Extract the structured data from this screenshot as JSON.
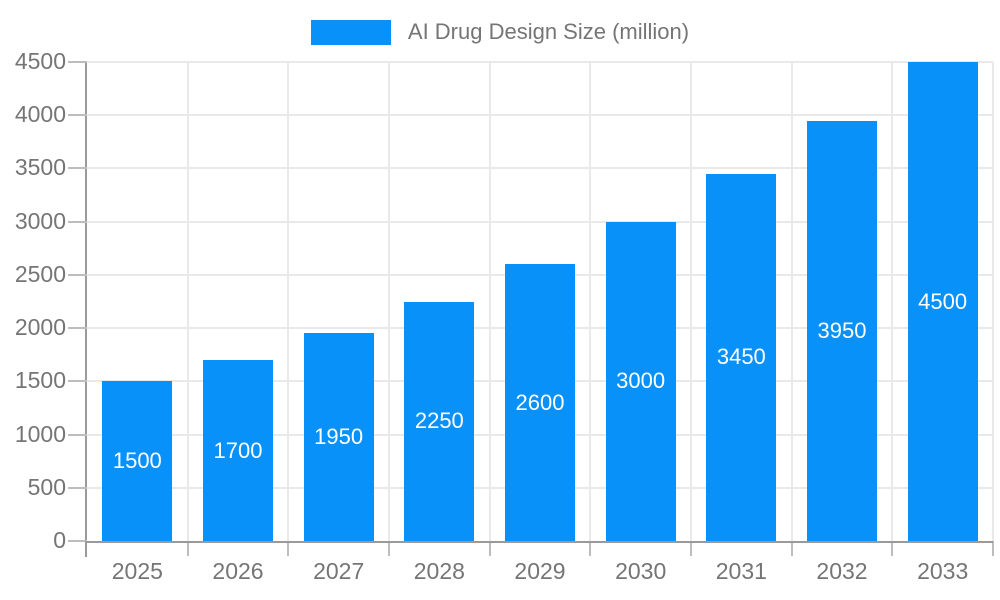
{
  "legend": {
    "label": "AI Drug Design Size (million)"
  },
  "chart_data": {
    "type": "bar",
    "title": "",
    "xlabel": "",
    "ylabel": "",
    "legend": "AI Drug Design Size (million)",
    "legend_position": "top-center",
    "categories": [
      "2025",
      "2026",
      "2027",
      "2028",
      "2029",
      "2030",
      "2031",
      "2032",
      "2033"
    ],
    "values": [
      1500,
      1700,
      1950,
      2250,
      2600,
      3000,
      3450,
      3950,
      4500
    ],
    "value_labels": "inside-center-white",
    "ylim": [
      0,
      4500
    ],
    "ytick_step": 500,
    "ytick_labels": [
      "0",
      "500",
      "1000",
      "1500",
      "2000",
      "2500",
      "3000",
      "3500",
      "4000",
      "4500"
    ],
    "grid": true,
    "colors": {
      "bar": "#0991fa",
      "text": "#757575",
      "grid": "#e9e9e9",
      "axis": "#9a9a9a",
      "tick": "#bdbdbd",
      "value_label": "#ffffff",
      "background": "#ffffff"
    }
  }
}
